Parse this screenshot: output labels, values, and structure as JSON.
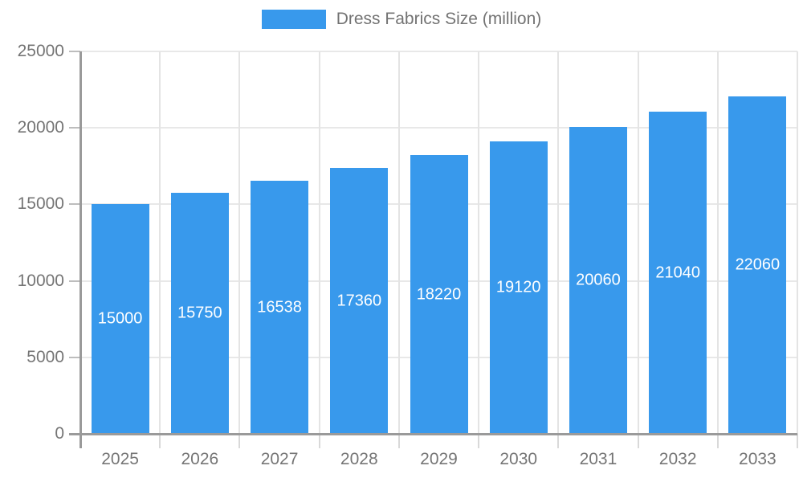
{
  "legend": {
    "label": "Dress Fabrics Size (million)",
    "swatch_color": "#3899EC"
  },
  "chart_data": {
    "type": "bar",
    "title": "Dress Fabrics Size (million)",
    "categories": [
      "2025",
      "2026",
      "2027",
      "2028",
      "2029",
      "2030",
      "2031",
      "2032",
      "2033"
    ],
    "values": [
      15000,
      15750,
      16538,
      17360,
      18220,
      19120,
      20060,
      21040,
      22060
    ],
    "series": [
      {
        "name": "Dress Fabrics Size (million)",
        "values": [
          15000,
          15750,
          16538,
          17360,
          18220,
          19120,
          20060,
          21040,
          22060
        ]
      }
    ],
    "bar_value_labels": [
      "15000",
      "15750",
      "16538",
      "17360",
      "18220",
      "19120",
      "20060",
      "21040",
      "22060"
    ],
    "xlabel": "",
    "ylabel": "",
    "ylim": [
      0,
      25000
    ],
    "yticks": [
      0,
      5000,
      10000,
      15000,
      20000,
      25000
    ],
    "ytick_labels": [
      "0",
      "5000",
      "10000",
      "15000",
      "20000",
      "25000"
    ],
    "grid": "on",
    "legend_position": "top-center",
    "bar_color": "#3899EC",
    "bar_label_color": "#ffffff",
    "axis_text_color": "#757575",
    "grid_color": "#e8e8e8",
    "axis_line_color": "#9a9a9a"
  }
}
